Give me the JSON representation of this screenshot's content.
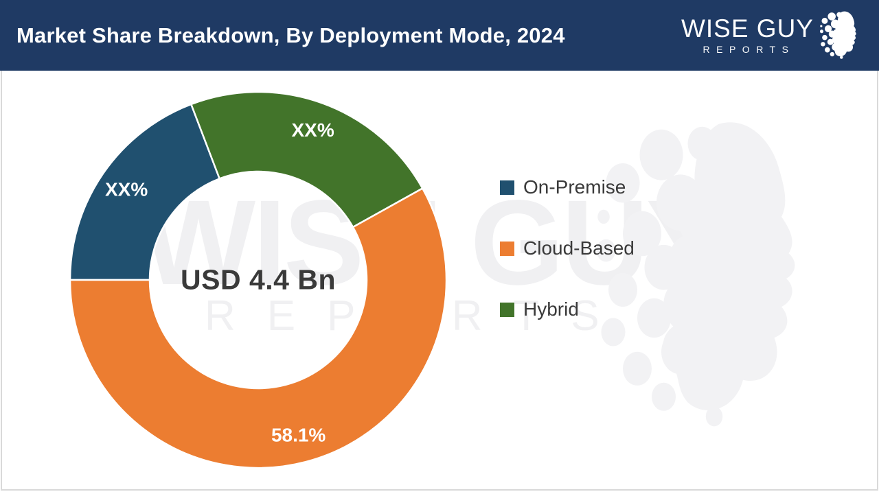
{
  "page": {
    "bg_color": "#FFFFFF",
    "frame_color": "#D9D9D9"
  },
  "header": {
    "bg_color": "#1F3A64",
    "title": "Market Share Breakdown, By Deployment Mode, 2024",
    "logo": {
      "line1": "WISE GUY",
      "line2": "REPORTS"
    }
  },
  "watermark": {
    "line1": "WISE GUY",
    "line2": "REPORTS"
  },
  "chart_data": {
    "type": "pie",
    "subtype": "donut",
    "title": "Market Share Breakdown, By Deployment Mode, 2024",
    "center_label": "USD 4.4 Bn",
    "start_angle_deg": 270,
    "direction": "clockwise",
    "segments": [
      {
        "label": "On-Premise",
        "value_pct": 19.2,
        "display": "XX%",
        "color": "#20506F"
      },
      {
        "label": "Hybrid",
        "value_pct": 22.7,
        "display": "XX%",
        "color": "#42742A"
      },
      {
        "label": "Cloud-Based",
        "value_pct": 58.1,
        "display": "58.1%",
        "color": "#EC7D31"
      }
    ],
    "legend": {
      "position": "right",
      "items": [
        {
          "label": "On-Premise",
          "color": "#20506F"
        },
        {
          "label": "Cloud-Based",
          "color": "#EC7D31"
        },
        {
          "label": "Hybrid",
          "color": "#42742A"
        }
      ]
    }
  }
}
